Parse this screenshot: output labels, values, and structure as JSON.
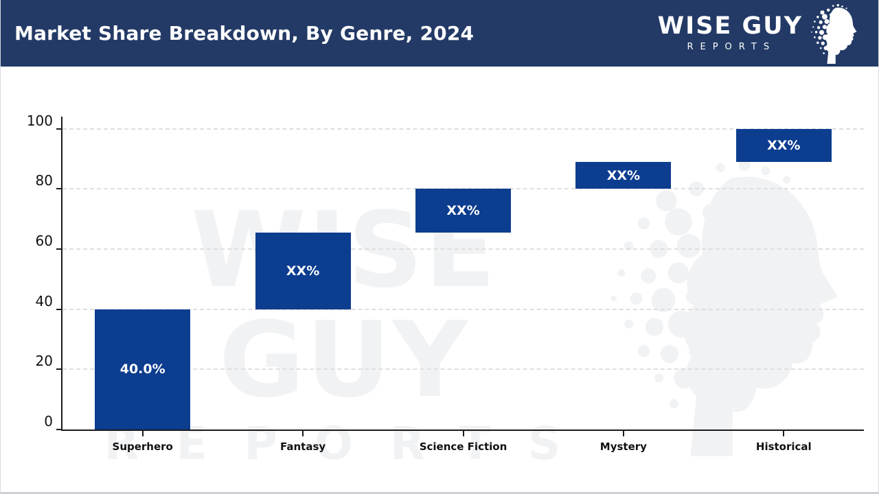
{
  "header": {
    "title": "Market Share Breakdown, By Genre, 2024",
    "logo": {
      "wordmark": "WISE GUY",
      "subtext": "REPORTS"
    }
  },
  "watermark": {
    "line1": "WISE GUY",
    "line2": "REPORTS"
  },
  "colors": {
    "header_bg": "#233A66",
    "bar": "#0C3D8F",
    "bar_label": "#ffffff",
    "gridline": "#dedede",
    "watermark": "#f1f2f4",
    "axis": "#1a1a1a"
  },
  "chart_data": {
    "type": "bar",
    "subtype": "waterfall",
    "title": "Market Share Breakdown, By Genre, 2024",
    "xlabel": "",
    "ylabel": "",
    "categories": [
      "Superhero",
      "Fantasy",
      "Science Fiction",
      "Mystery",
      "Historical"
    ],
    "segments": [
      {
        "category": "Superhero",
        "start": 0,
        "end": 40,
        "value": 40.0,
        "label": "40.0%"
      },
      {
        "category": "Fantasy",
        "start": 40,
        "end": 65.5,
        "value": 25.5,
        "label": "XX%"
      },
      {
        "category": "Science Fiction",
        "start": 65.5,
        "end": 80,
        "value": 14.5,
        "label": "XX%"
      },
      {
        "category": "Mystery",
        "start": 80,
        "end": 89,
        "value": 9.0,
        "label": "XX%"
      },
      {
        "category": "Historical",
        "start": 89,
        "end": 100,
        "value": 11.0,
        "label": "XX%"
      }
    ],
    "yticks": [
      0,
      20,
      40,
      60,
      80,
      100
    ],
    "ylim": [
      0,
      104
    ],
    "grid": "horizontal-dashed",
    "legend": "none",
    "bar_color": "#0C3D8F",
    "bar_label_color": "#ffffff"
  }
}
